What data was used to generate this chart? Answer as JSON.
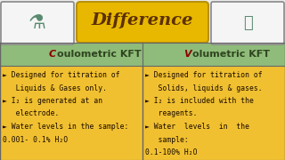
{
  "title": "Difference",
  "title_bg": "#E8B800",
  "title_color": "#5C3000",
  "header_bg": "#8FBC7A",
  "header_color": "#2F4520",
  "content_bg": "#F0C030",
  "content_color": "#1A0A00",
  "col1_C_color": "#8B0000",
  "col2_V_color": "#8B0000",
  "col1_header_rest": "oulometric KFT",
  "col2_header_rest": "olumetric KFT",
  "col1_lines": [
    "► Designed for titration of",
    "   Liquids & Gases only.",
    "► I₂ is generated at an",
    "   electrode.",
    "► Water levels in the sample:",
    "0.001- 0.1% H₂O"
  ],
  "col2_lines": [
    "► Designed for titration of",
    "   Solids, liquids & gases.",
    "► I₂ is included with the",
    "   reagents.",
    "► Water  levels  in  the",
    "   sample:",
    "0.1-100% H₂O"
  ],
  "fig_width": 3.2,
  "fig_height": 1.8,
  "dpi": 100
}
